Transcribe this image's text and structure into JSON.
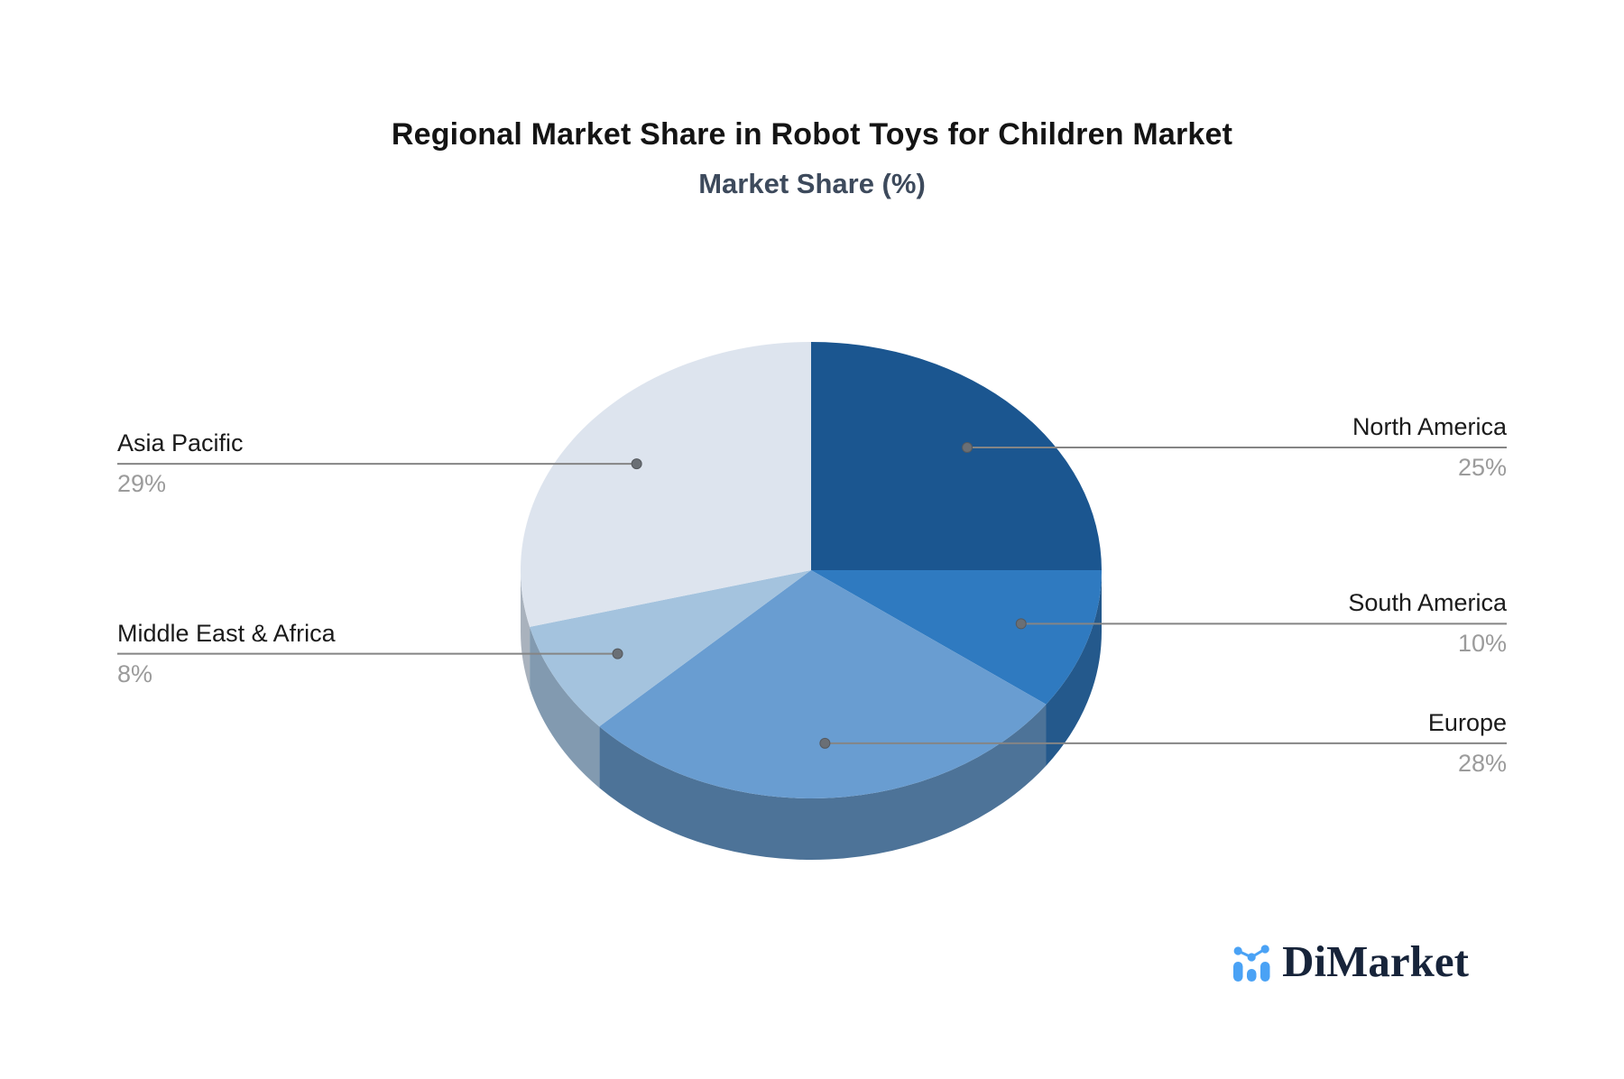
{
  "header": {
    "title": "Regional Market Share in Robot Toys for Children Market",
    "subtitle": "Market Share (%)"
  },
  "chart_data": {
    "type": "pie",
    "style": "3d",
    "title": "Regional Market Share in Robot Toys for Children Market",
    "subtitle": "Market Share (%)",
    "unit": "%",
    "direction": "clockwise",
    "start_angle_deg": 0,
    "legend_position": "callout-labels-left-right",
    "segments": [
      {
        "label": "North America",
        "value": 25,
        "pct_label": "25%",
        "color": "#1B5690",
        "side_color": "#15436F"
      },
      {
        "label": "South America",
        "value": 10,
        "pct_label": "10%",
        "color": "#2F7AC0",
        "side_color": "#24598C"
      },
      {
        "label": "Europe",
        "value": 28,
        "pct_label": "28%",
        "color": "#699DD1",
        "side_color": "#4D7398"
      },
      {
        "label": "Middle East & Africa",
        "value": 8,
        "pct_label": "8%",
        "color": "#A4C3DE",
        "side_color": "#829AB0"
      },
      {
        "label": "Asia Pacific",
        "value": 29,
        "pct_label": "29%",
        "color": "#DDE4EE",
        "side_color": "#A9B2BD"
      }
    ]
  },
  "branding": {
    "logo_text": "DiMarket",
    "logo_icon": "bar-line-chart-icon",
    "logo_text_color": "#17243A",
    "logo_icon_color": "#4AA2F5"
  },
  "colors": {
    "background": "#FFFFFF",
    "title_text": "#141414",
    "subtitle_text": "#3D4A5C",
    "callout_label_text": "#1B1B1B",
    "callout_value_text": "#9B9B9B",
    "callout_line": "#858585",
    "callout_dot": "#6A6F75"
  }
}
